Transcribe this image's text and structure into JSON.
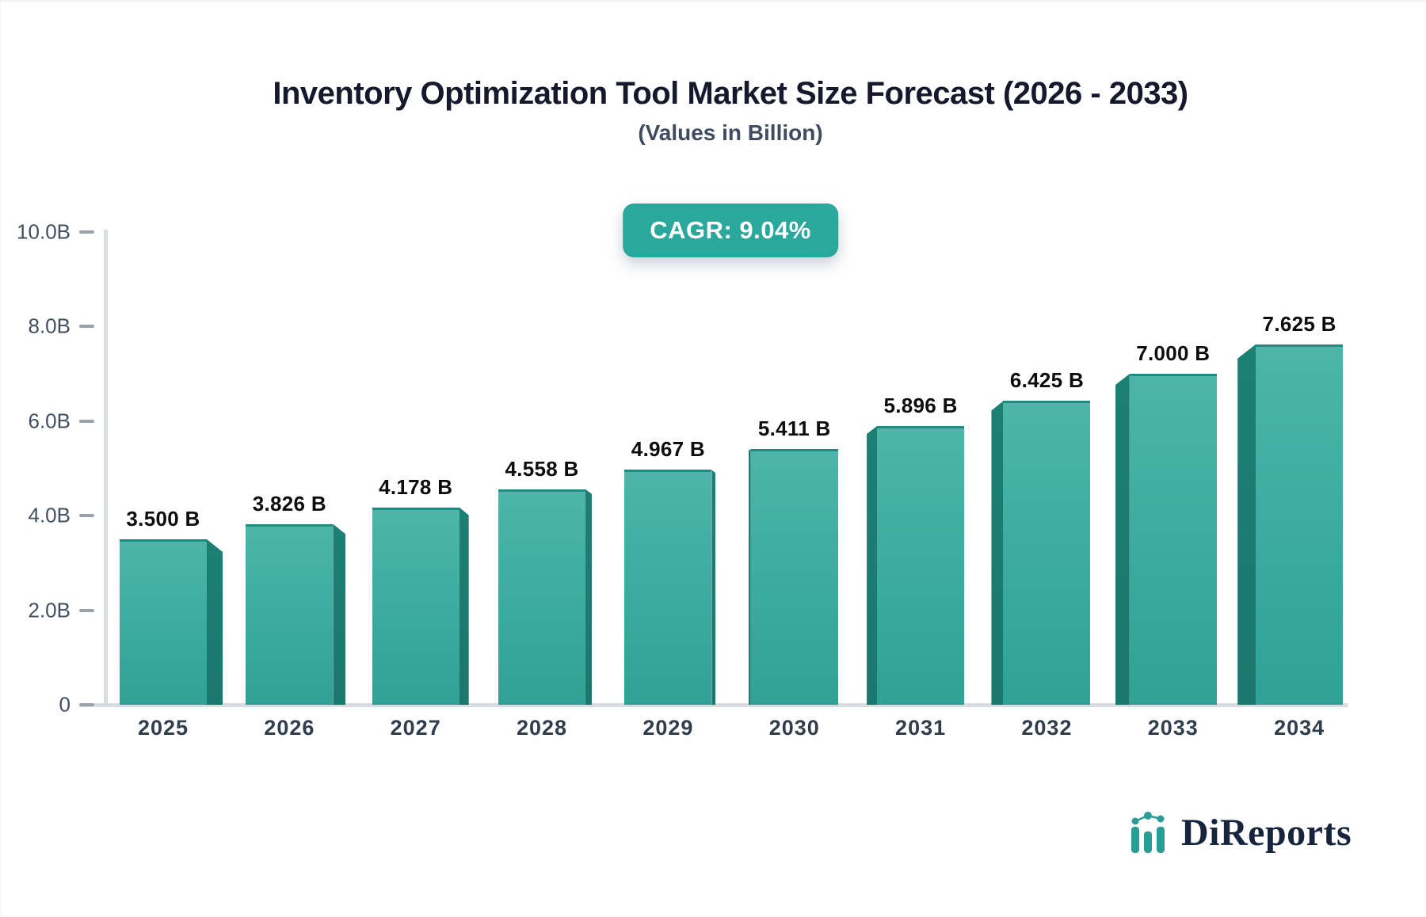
{
  "header": {
    "title": "Inventory Optimization Tool Market Size Forecast (2026 - 2033)",
    "subtitle": "(Values in Billion)",
    "cagr_label": "CAGR: 9.04%"
  },
  "chart_data": {
    "type": "bar",
    "title": "Inventory Optimization Tool Market Size Forecast (2026 - 2033)",
    "subtitle": "(Values in Billion)",
    "categories": [
      "2025",
      "2026",
      "2027",
      "2028",
      "2029",
      "2030",
      "2031",
      "2032",
      "2033",
      "2034"
    ],
    "values": [
      3.5,
      3.826,
      4.178,
      4.558,
      4.967,
      5.411,
      5.896,
      6.425,
      7.0,
      7.625
    ],
    "labels": [
      "3.500 B",
      "3.826 B",
      "4.178 B",
      "4.558 B",
      "4.967 B",
      "5.411 B",
      "5.896 B",
      "6.425 B",
      "7.000 B",
      "7.625 B"
    ],
    "yticks": [
      "0",
      "2.0B",
      "4.0B",
      "6.0B",
      "8.0B",
      "10.0B"
    ],
    "ylim": [
      0,
      10
    ],
    "xlabel": "",
    "ylabel": "",
    "grid": false,
    "legend": false,
    "annotations": [
      "CAGR: 9.04%"
    ],
    "bar_style": "3d-extruded-center-perspective"
  },
  "colors": {
    "bar_face_top": "#4db5a9",
    "bar_face_bottom": "#2fa295",
    "bar_side": "#1c7f74",
    "bar_top_edge": "#1e8c80",
    "badge_bg": "#29a89b",
    "axis_line": "#d9dce1",
    "tick": "#9aa2ad",
    "title_text": "#15192b",
    "subtitle_text": "#3f4b5e",
    "value_label_text": "#0d0d0d",
    "axis_label_text": "#424f60",
    "logo_navy": "#16243e",
    "logo_teal": "#2d9c94"
  },
  "branding": {
    "logo_text": "DiReports",
    "logo_icon": "mini-bar-line-chart-icon"
  }
}
